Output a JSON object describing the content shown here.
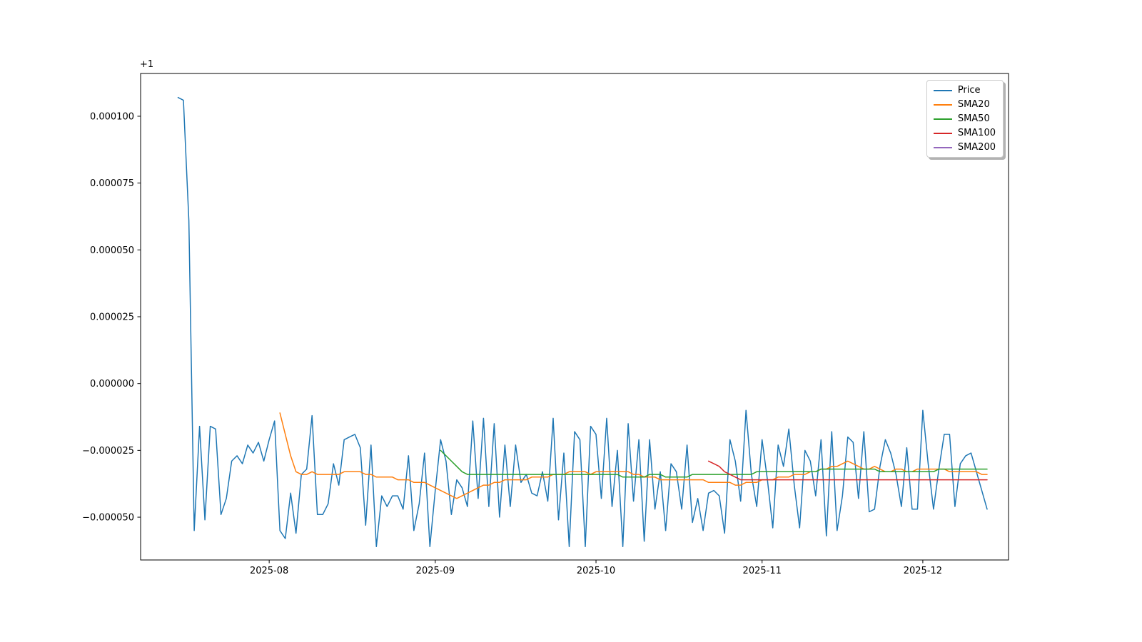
{
  "page": {
    "background": "#ffffff"
  },
  "chart_data": {
    "type": "line",
    "title": "",
    "xlabel": "",
    "ylabel": "",
    "grid": false,
    "legend_position": "upper right",
    "y_offset_text": "+1",
    "start_date": "2025-07-15",
    "x_axis": {
      "tick_labels": [
        "2025-08",
        "2025-09",
        "2025-10",
        "2025-11",
        "2025-12"
      ],
      "tick_days": [
        17,
        48,
        78,
        109,
        139
      ],
      "lim_days": [
        -7,
        155
      ]
    },
    "y_axis": {
      "tick_labels": [
        "−0.000050",
        "−0.000025",
        "0.000000",
        "0.000025",
        "0.000050",
        "0.000075",
        "0.000100"
      ],
      "tick_values": [
        -50,
        -25,
        0,
        25,
        50,
        75,
        100
      ],
      "lim": [
        -66,
        116
      ],
      "units": "offset from 1.0 in 1e-6 (axis shows +1 offset)"
    },
    "series": [
      {
        "name": "Price",
        "color": "#1f77b4",
        "start_day": 0,
        "values": [
          107,
          106,
          61,
          -55,
          -16,
          -51,
          -16,
          -17,
          -49,
          -43,
          -29,
          -27,
          -30,
          -23,
          -26,
          -22,
          -29,
          -21,
          -14,
          -55,
          -58,
          -41,
          -56,
          -34,
          -32,
          -12,
          -49,
          -49,
          -45,
          -30,
          -38,
          -21,
          -20,
          -19,
          -24,
          -53,
          -23,
          -61,
          -42,
          -46,
          -42,
          -42,
          -47,
          -27,
          -55,
          -45,
          -26,
          -61,
          -40,
          -21,
          -29,
          -49,
          -36,
          -39,
          -46,
          -14,
          -43,
          -13,
          -46,
          -15,
          -50,
          -23,
          -46,
          -23,
          -37,
          -34,
          -41,
          -42,
          -33,
          -44,
          -13,
          -51,
          -26,
          -61,
          -18,
          -21,
          -61,
          -16,
          -19,
          -43,
          -13,
          -46,
          -25,
          -61,
          -15,
          -44,
          -21,
          -59,
          -21,
          -47,
          -33,
          -55,
          -30,
          -33,
          -47,
          -23,
          -52,
          -43,
          -55,
          -41,
          -40,
          -42,
          -56,
          -21,
          -29,
          -44,
          -10,
          -34,
          -46,
          -21,
          -36,
          -54,
          -23,
          -31,
          -17,
          -38,
          -54,
          -25,
          -29,
          -42,
          -21,
          -57,
          -18,
          -55,
          -42,
          -20,
          -22,
          -43,
          -18,
          -48,
          -47,
          -31,
          -21,
          -26,
          -34,
          -46,
          -24,
          -47,
          -47,
          -10,
          -30,
          -47,
          -32,
          -19,
          -19,
          -46,
          -30,
          -27,
          -26,
          -33,
          -40,
          -47
        ]
      },
      {
        "name": "SMA20",
        "color": "#ff7f0e",
        "start_day": 19,
        "values": [
          -11,
          -19,
          -27,
          -33,
          -34,
          -34,
          -33,
          -34,
          -34,
          -34,
          -34,
          -34,
          -33,
          -33,
          -33,
          -33,
          -34,
          -34,
          -35,
          -35,
          -35,
          -35,
          -36,
          -36,
          -36,
          -37,
          -37,
          -37,
          -38,
          -39,
          -40,
          -41,
          -42,
          -43,
          -42,
          -41,
          -40,
          -39,
          -38,
          -38,
          -37,
          -37,
          -36,
          -36,
          -36,
          -36,
          -36,
          -35,
          -35,
          -35,
          -35,
          -34,
          -34,
          -34,
          -33,
          -33,
          -33,
          -33,
          -34,
          -33,
          -33,
          -33,
          -33,
          -33,
          -33,
          -33,
          -34,
          -34,
          -35,
          -35,
          -35,
          -36,
          -36,
          -36,
          -36,
          -36,
          -36,
          -36,
          -36,
          -36,
          -37,
          -37,
          -37,
          -37,
          -37,
          -38,
          -38,
          -37,
          -37,
          -37,
          -36,
          -36,
          -36,
          -35,
          -35,
          -35,
          -34,
          -34,
          -34,
          -33,
          -33,
          -32,
          -32,
          -31,
          -31,
          -30,
          -29,
          -30,
          -31,
          -32,
          -32,
          -31,
          -32,
          -33,
          -33,
          -32,
          -32,
          -33,
          -33,
          -32,
          -32,
          -32,
          -32,
          -32,
          -32,
          -33,
          -33,
          -33,
          -33,
          -33,
          -33,
          -34,
          -34
        ]
      },
      {
        "name": "SMA50",
        "color": "#2ca02c",
        "start_day": 49,
        "values": [
          -25,
          -27,
          -29,
          -31,
          -33,
          -34,
          -34,
          -34,
          -34,
          -34,
          -34,
          -34,
          -34,
          -34,
          -34,
          -34,
          -34,
          -34,
          -34,
          -34,
          -34,
          -34,
          -34,
          -34,
          -34,
          -34,
          -34,
          -34,
          -34,
          -34,
          -34,
          -34,
          -34,
          -34,
          -35,
          -35,
          -35,
          -35,
          -35,
          -34,
          -34,
          -34,
          -35,
          -35,
          -35,
          -35,
          -35,
          -34,
          -34,
          -34,
          -34,
          -34,
          -34,
          -34,
          -34,
          -34,
          -34,
          -34,
          -34,
          -33,
          -33,
          -33,
          -33,
          -33,
          -33,
          -33,
          -33,
          -33,
          -33,
          -33,
          -33,
          -32,
          -32,
          -32,
          -32,
          -32,
          -32,
          -32,
          -32,
          -32,
          -32,
          -32,
          -33,
          -33,
          -33,
          -33,
          -33,
          -33,
          -33,
          -33,
          -33,
          -33,
          -33,
          -32,
          -32,
          -32,
          -32,
          -32,
          -32,
          -32,
          -32,
          -32,
          -32
        ]
      },
      {
        "name": "SMA100",
        "color": "#d62728",
        "start_day": 99,
        "values": [
          -29,
          -30,
          -31,
          -33,
          -34,
          -35,
          -36,
          -36,
          -36,
          -36,
          -36,
          -36,
          -36,
          -36,
          -36,
          -36,
          -36,
          -36,
          -36,
          -36,
          -36,
          -36,
          -36,
          -36,
          -36,
          -36,
          -36,
          -36,
          -36,
          -36,
          -36,
          -36,
          -36,
          -36,
          -36,
          -36,
          -36,
          -36,
          -36,
          -36,
          -36,
          -36,
          -36,
          -36,
          -36,
          -36,
          -36,
          -36,
          -36,
          -36,
          -36,
          -36,
          -36
        ]
      },
      {
        "name": "SMA200",
        "color": "#9467bd",
        "start_day": 199,
        "values": []
      }
    ]
  }
}
